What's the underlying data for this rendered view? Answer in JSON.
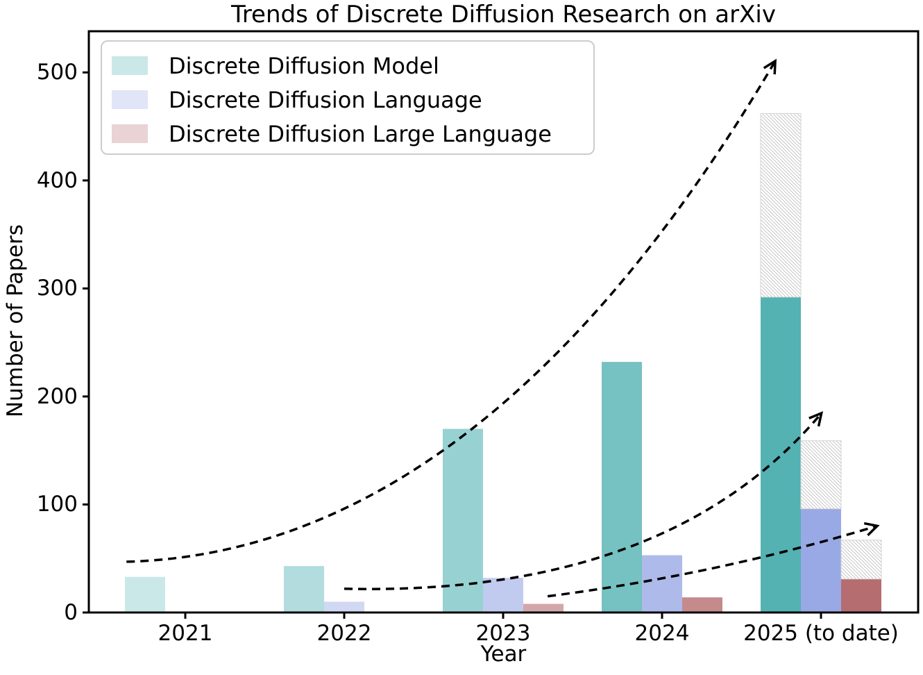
{
  "chart_data": {
    "type": "bar",
    "title": "Trends of Discrete Diffusion Research on arXiv",
    "xlabel": "Year",
    "ylabel": "Number of Papers",
    "categories": [
      "2021",
      "2022",
      "2023",
      "2024",
      "2025 (to date)"
    ],
    "yticks": [
      0,
      100,
      200,
      300,
      400,
      500
    ],
    "ylim": [
      0,
      538
    ],
    "grid": false,
    "legend_position": "upper left",
    "bar_opacity_by_year": [
      0.3,
      0.45,
      0.6,
      0.8,
      1.0
    ],
    "series": [
      {
        "key": "model",
        "name": "Discrete Diffusion Model",
        "color": "#54b2b3",
        "values": [
          33,
          43,
          170,
          232,
          292
        ],
        "projected_total_2025": 462
      },
      {
        "key": "language",
        "name": "Discrete Diffusion Language",
        "color": "#98a9e5",
        "values": [
          0,
          10,
          32,
          53,
          96
        ],
        "projected_total_2025": 159
      },
      {
        "key": "large-language",
        "name": "Discrete Diffusion Large Language",
        "color": "#b56d6f",
        "values": [
          0,
          0,
          8,
          14,
          31
        ],
        "projected_total_2025": 67
      }
    ],
    "projection_style": "hatched",
    "trend_arrows": [
      {
        "series": "model",
        "from": {
          "year": 2020.63,
          "papers": 47
        },
        "control": {
          "year": 2022.89,
          "papers": 56
        },
        "to": {
          "year": 2024.71,
          "papers": 510
        }
      },
      {
        "series": "language",
        "from": {
          "year": 2022.0,
          "papers": 22
        },
        "control": {
          "year": 2024.03,
          "papers": 15
        },
        "to": {
          "year": 2025.0,
          "papers": 184
        }
      },
      {
        "series": "large-language",
        "from": {
          "year": 2023.28,
          "papers": 15
        },
        "control": {
          "year": 2024.34,
          "papers": 35
        },
        "to": {
          "year": 2025.35,
          "papers": 80
        }
      }
    ]
  }
}
